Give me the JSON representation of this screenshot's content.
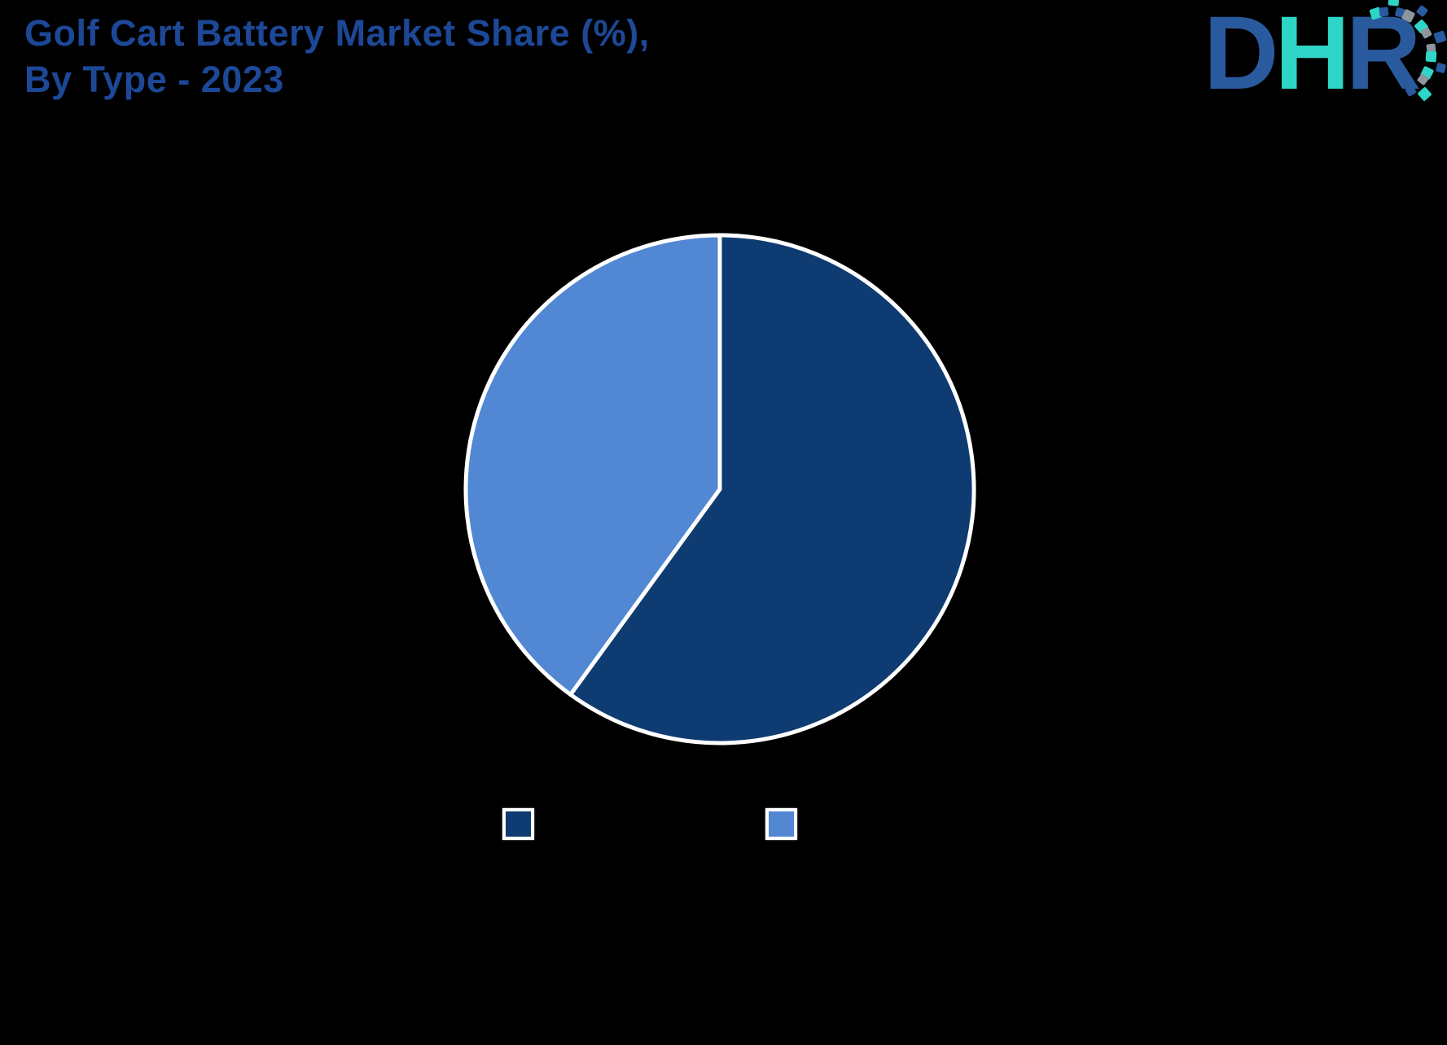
{
  "page": {
    "background": "#000000"
  },
  "header": {
    "title_line1": "Golf Cart Battery Market Share (%),",
    "title_line2": "By Type - 2023",
    "title_color": "#1D4897"
  },
  "logo": {
    "letters": [
      {
        "char": "D",
        "color": "#2A5A9E"
      },
      {
        "char": "H",
        "color": "#2FD5C6"
      },
      {
        "char": "R",
        "color": "#2A5A9E"
      }
    ],
    "dot_colors": [
      "#2FD5C6",
      "#2A5A9E",
      "#2FD5C6",
      "#2A5A9E",
      "#8D969F",
      "#2A5A9E",
      "#2FD5C6",
      "#8D969F",
      "#2A5A9E",
      "#8D969F",
      "#2FD5C6",
      "#2A5A9E",
      "#2FD5C6",
      "#8D969F",
      "#2FD5C6",
      "#2A5A9E"
    ]
  },
  "chart_data": {
    "type": "pie",
    "title": "Golf Cart Battery Market Share (%), By Type - 2023",
    "series": [
      {
        "name": "",
        "value": 60,
        "color": "#0E3B71"
      },
      {
        "name": "",
        "value": 40,
        "color": "#5187D3"
      }
    ],
    "start_angle_deg": 0,
    "direction": "clockwise",
    "slice_border_color": "#FFFFFF",
    "legend": {
      "position": "bottom",
      "labels_visible": false,
      "swatch_colors": [
        "#0E3B71",
        "#5187D3"
      ]
    }
  }
}
